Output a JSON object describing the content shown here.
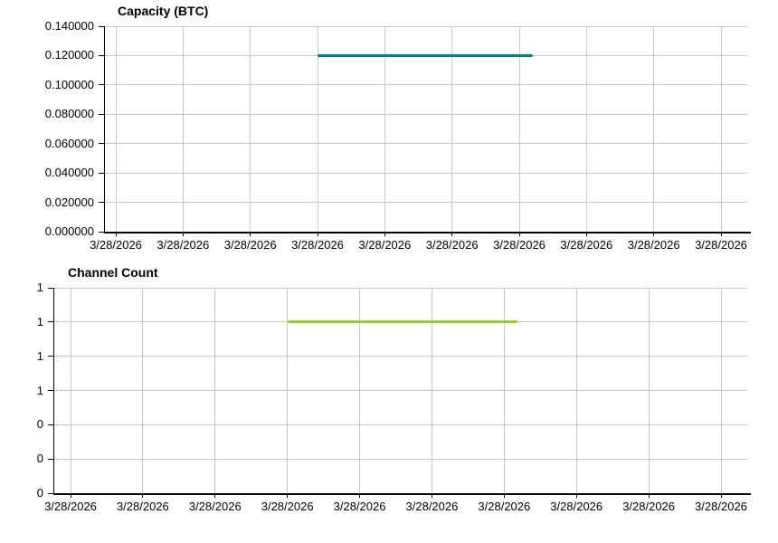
{
  "colors": {
    "background": "#FFFFFF",
    "axis": "#000000",
    "gridline": "#C8C8C8",
    "capacity_series": "#008080",
    "channel_count_series": "#9ACD32"
  },
  "chart_data": [
    {
      "id": "capacity",
      "type": "line",
      "title": "Capacity (BTC)",
      "xlabel": "",
      "ylabel": "",
      "ylim": [
        0,
        0.14
      ],
      "grid": true,
      "legend": "none",
      "y_tick_values": [
        0.14,
        0.12,
        0.1,
        0.08,
        0.06,
        0.04,
        0.02,
        0
      ],
      "y_tick_labels": [
        "0.140000",
        "0.120000",
        "0.100000",
        "0.080000",
        "0.060000",
        "0.040000",
        "0.020000",
        "0.000000"
      ],
      "x_tick_labels": [
        "3/28/2026",
        "3/28/2026",
        "3/28/2026",
        "3/28/2026",
        "3/28/2026",
        "3/28/2026",
        "3/28/2026",
        "3/28/2026",
        "3/28/2026",
        "3/28/2026"
      ],
      "series": [
        {
          "name": "Capacity (BTC)",
          "color": "#008080",
          "y_value": 0.12,
          "x_span_ticks": [
            3,
            6.2
          ],
          "description": "constant horizontal line at 0.12 BTC spanning from the 4th x tick to just past the 7th x tick"
        }
      ]
    },
    {
      "id": "channel-count",
      "type": "line",
      "title": "Channel Count",
      "xlabel": "",
      "ylabel": "",
      "ylim": [
        0,
        1.2
      ],
      "grid": true,
      "legend": "none",
      "y_tick_values": [
        1.2,
        1.0,
        0.8,
        0.6,
        0.4,
        0.2,
        0
      ],
      "y_tick_labels": [
        "1",
        "1",
        "1",
        "1",
        "0",
        "0",
        "0"
      ],
      "x_tick_labels": [
        "3/28/2026",
        "3/28/2026",
        "3/28/2026",
        "3/28/2026",
        "3/28/2026",
        "3/28/2026",
        "3/28/2026",
        "3/28/2026",
        "3/28/2026",
        "3/28/2026"
      ],
      "series": [
        {
          "name": "Channel Count",
          "color": "#9ACD32",
          "y_value": 1,
          "x_span_ticks": [
            3,
            6.18
          ],
          "description": "constant horizontal line at 1 channel spanning from the 4th x tick to just past the 7th x tick"
        }
      ]
    }
  ]
}
